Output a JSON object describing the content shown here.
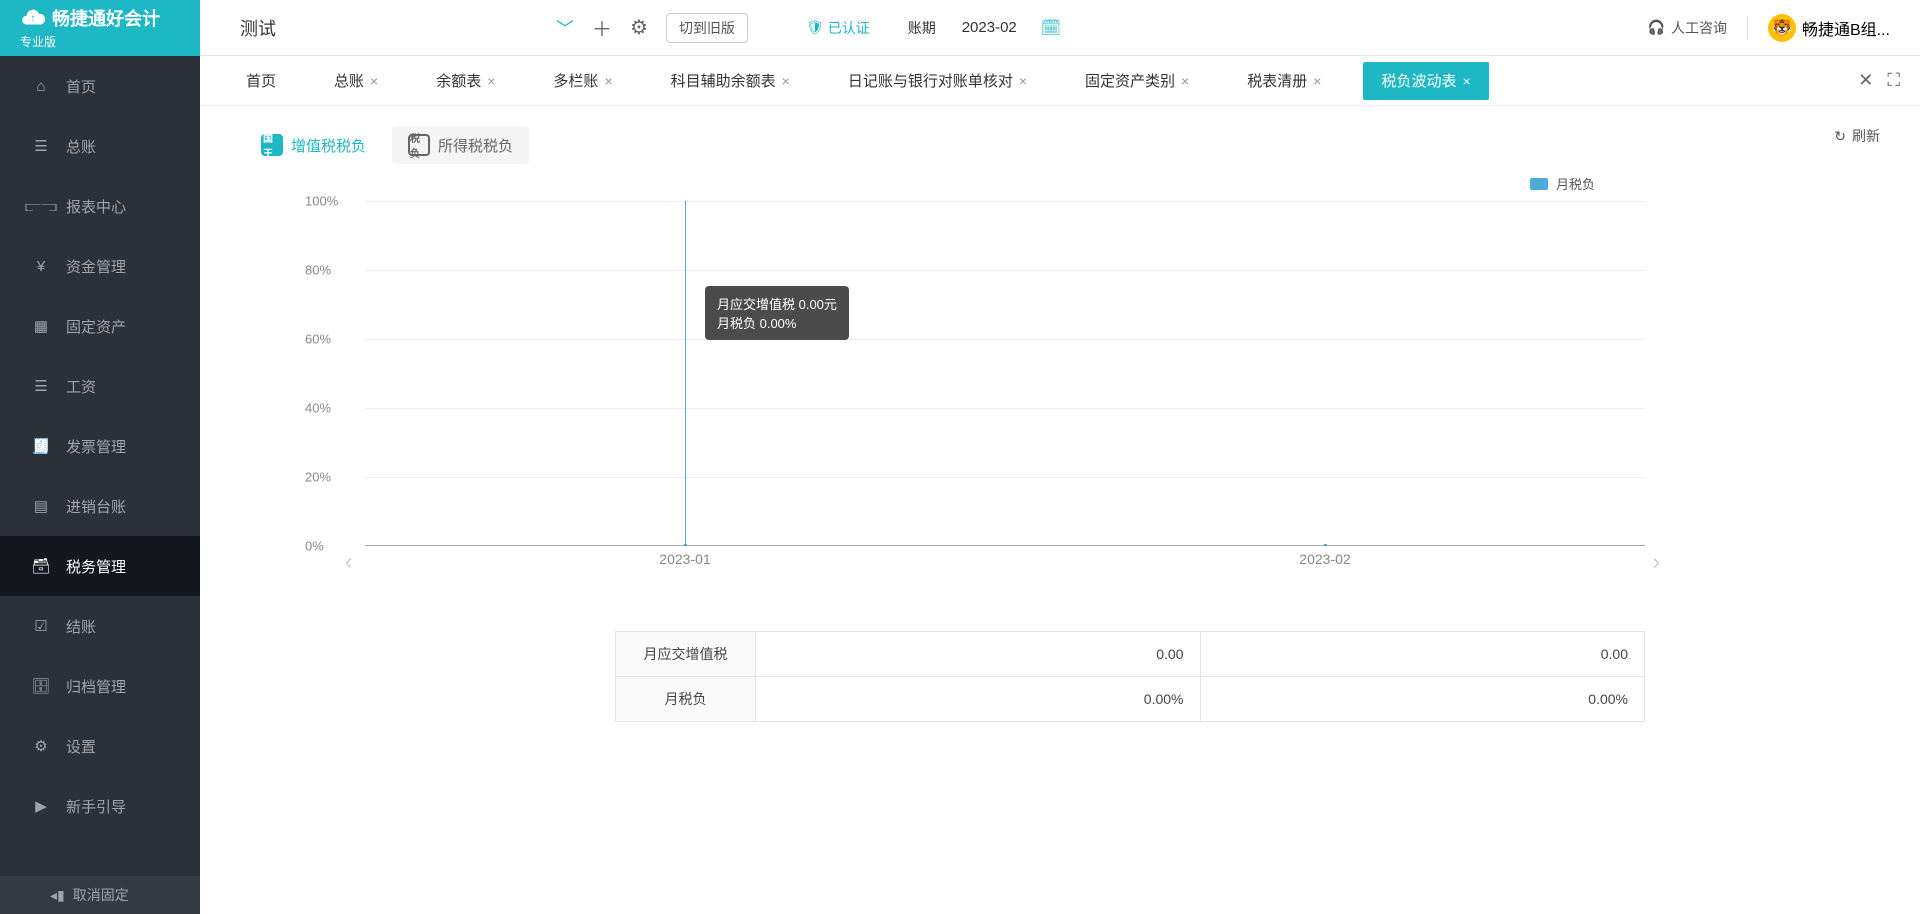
{
  "logo": {
    "name": "畅捷通好会计",
    "edition": "专业版"
  },
  "header": {
    "company": "测试",
    "oldVersionBtn": "切到旧版",
    "verified": "已认证",
    "periodLabel": "账期",
    "periodValue": "2023-02",
    "consult": "人工咨询",
    "userName": "畅捷通B组..."
  },
  "sidebar": {
    "items": [
      {
        "label": "首页",
        "active": false
      },
      {
        "label": "总账",
        "active": false
      },
      {
        "label": "报表中心",
        "active": false
      },
      {
        "label": "资金管理",
        "active": false
      },
      {
        "label": "固定资产",
        "active": false
      },
      {
        "label": "工资",
        "active": false
      },
      {
        "label": "发票管理",
        "active": false
      },
      {
        "label": "进销台账",
        "active": false
      },
      {
        "label": "税务管理",
        "active": true
      },
      {
        "label": "结账",
        "active": false
      },
      {
        "label": "归档管理",
        "active": false
      },
      {
        "label": "设置",
        "active": false
      },
      {
        "label": "新手引导",
        "active": false
      }
    ],
    "pin": "取消固定"
  },
  "tabs": [
    {
      "label": "首页",
      "closable": false,
      "active": false
    },
    {
      "label": "总账",
      "closable": true,
      "active": false
    },
    {
      "label": "余额表",
      "closable": true,
      "active": false
    },
    {
      "label": "多栏账",
      "closable": true,
      "active": false
    },
    {
      "label": "科目辅助余额表",
      "closable": true,
      "active": false
    },
    {
      "label": "日记账与银行对账单核对",
      "closable": true,
      "active": false
    },
    {
      "label": "固定资产类别",
      "closable": true,
      "active": false
    },
    {
      "label": "税表清册",
      "closable": true,
      "active": false
    },
    {
      "label": "税负波动表",
      "closable": true,
      "active": true
    }
  ],
  "subTabs": [
    {
      "label": "增值税税负",
      "active": true,
      "badge": "国王"
    },
    {
      "label": "所得税税负",
      "active": false,
      "badge": "税负"
    }
  ],
  "refresh": "刷新",
  "chart": {
    "type": "bar",
    "legend": "月税负",
    "legend_color": "#4fa9d9",
    "y_ticks": [
      "100%",
      "80%",
      "60%",
      "40%",
      "20%",
      "0%"
    ],
    "ylim": [
      0,
      100
    ],
    "x_categories": [
      "2023-01",
      "2023-02"
    ],
    "values": [
      0.0,
      0.0
    ],
    "grid_color": "#eeeeee",
    "axis_color": "#aaaaaa",
    "bar_color": "#4fa9d9",
    "tooltip": {
      "line1": "月应交增值税 0.00元",
      "line2": "月税负 0.00%",
      "bg": "rgba(60,60,60,0.92)"
    }
  },
  "table": {
    "rows": [
      {
        "label": "月应交增值税",
        "v1": "0.00",
        "v2": "0.00"
      },
      {
        "label": "月税负",
        "v1": "0.00%",
        "v2": "0.00%"
      }
    ]
  }
}
